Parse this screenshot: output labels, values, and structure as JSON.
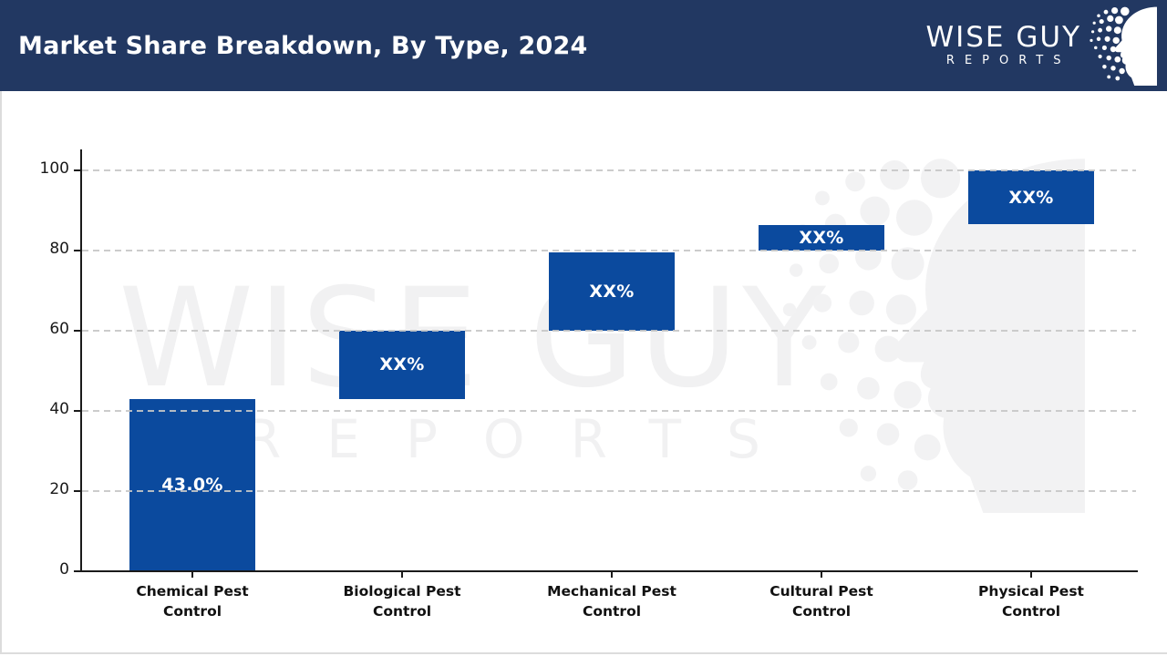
{
  "header": {
    "title": "Market Share Breakdown, By Type, 2024",
    "bg_color": "#223862",
    "logo": {
      "line1": "WISE GUY",
      "line2": "REPORTS"
    }
  },
  "watermark": {
    "line1": "WISE GUY",
    "line2": "REPORTS"
  },
  "chart_data": {
    "type": "bar",
    "subtype": "waterfall",
    "title": "Market Share Breakdown, By Type, 2024",
    "xlabel": "",
    "ylabel": "",
    "ylim": [
      0,
      105
    ],
    "y_ticks": [
      0,
      20,
      40,
      60,
      80,
      100
    ],
    "grid": "horizontal-dashed",
    "legend": "none",
    "bar_color": "#0b4a9e",
    "label_color": "#ffffff",
    "categories": [
      "Chemical Pest Control",
      "Biological Pest Control",
      "Mechanical Pest Control",
      "Cultural Pest Control",
      "Physical Pest Control"
    ],
    "bars": [
      {
        "category": "Chemical Pest Control",
        "start": 0,
        "end": 43,
        "label": "43.0%"
      },
      {
        "category": "Biological Pest Control",
        "start": 43,
        "end": 60,
        "label": "XX%"
      },
      {
        "category": "Mechanical Pest Control",
        "start": 60,
        "end": 79.5,
        "label": "XX%"
      },
      {
        "category": "Cultural Pest Control",
        "start": 80,
        "end": 86.3,
        "label": "XX%"
      },
      {
        "category": "Physical Pest Control",
        "start": 86.5,
        "end": 100,
        "label": "XX%"
      }
    ]
  }
}
